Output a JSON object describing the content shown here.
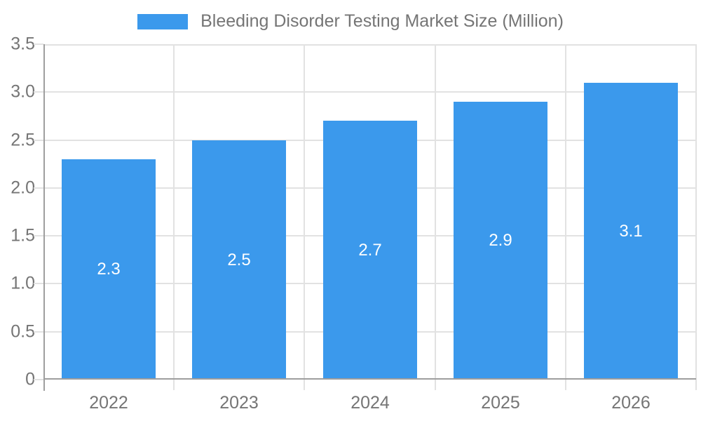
{
  "legend": {
    "label": "Bleeding Disorder Testing Market Size (Million)"
  },
  "chart_data": {
    "type": "bar",
    "title": "Bleeding Disorder Testing Market Size (Million)",
    "categories": [
      "2022",
      "2023",
      "2024",
      "2025",
      "2026"
    ],
    "values": [
      2.3,
      2.5,
      2.7,
      2.9,
      3.1
    ],
    "value_labels": [
      "2.3",
      "2.5",
      "2.7",
      "2.9",
      "3.1"
    ],
    "series": [
      {
        "name": "Bleeding Disorder Testing Market Size (Million)",
        "values": [
          2.3,
          2.5,
          2.7,
          2.9,
          3.1
        ]
      }
    ],
    "xlabel": "",
    "ylabel": "",
    "ylim": [
      0,
      3.5
    ],
    "ytick_step": 0.5,
    "ytick_labels": [
      "0",
      "0.5",
      "1.0",
      "1.5",
      "2.0",
      "2.5",
      "3.0",
      "3.5"
    ],
    "grid": true,
    "legend_position": "top",
    "colors": {
      "bar": "#3b99ec",
      "value_label": "#ffffff",
      "grid": "#e2e2e2",
      "axis": "#9e9e9e",
      "text": "#757575"
    }
  }
}
